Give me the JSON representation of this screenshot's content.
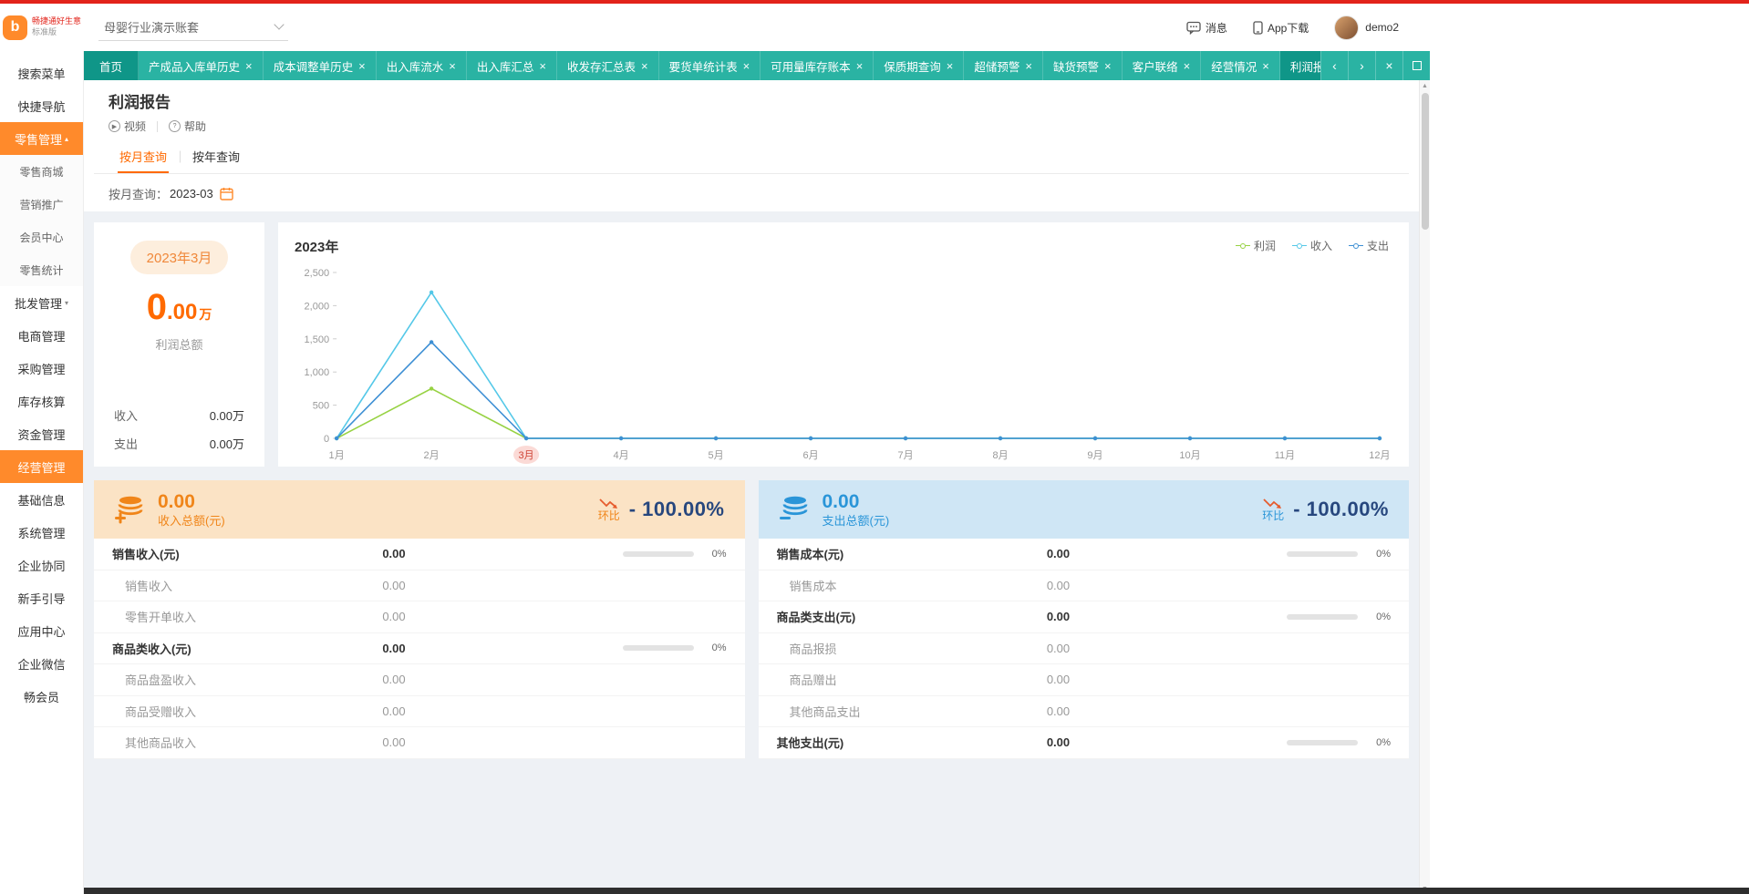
{
  "topbar": {
    "logo_title": "畅捷通好生意",
    "logo_edition": "标准版",
    "account_select": "母婴行业演示账套",
    "messages_label": "消息",
    "app_download_label": "App下载",
    "username": "demo2"
  },
  "tabbar": {
    "home": "首页",
    "tabs": [
      {
        "label": "产成品入库单历史"
      },
      {
        "label": "成本调整单历史"
      },
      {
        "label": "出入库流水"
      },
      {
        "label": "出入库汇总"
      },
      {
        "label": "收发存汇总表"
      },
      {
        "label": "要货单统计表"
      },
      {
        "label": "可用量库存账本"
      },
      {
        "label": "保质期查询"
      },
      {
        "label": "超储预警"
      },
      {
        "label": "缺货预警"
      },
      {
        "label": "客户联络"
      },
      {
        "label": "经营情况"
      },
      {
        "label": "利润报告",
        "active": true
      }
    ]
  },
  "sidebar": {
    "items": [
      {
        "label": "搜索菜单",
        "type": "item"
      },
      {
        "label": "快捷导航",
        "type": "item"
      },
      {
        "label": "零售管理",
        "type": "group",
        "active": true,
        "expanded": true
      },
      {
        "label": "零售商城",
        "type": "sub"
      },
      {
        "label": "营销推广",
        "type": "sub"
      },
      {
        "label": "会员中心",
        "type": "sub"
      },
      {
        "label": "零售统计",
        "type": "sub"
      },
      {
        "label": "批发管理",
        "type": "group"
      },
      {
        "label": "电商管理",
        "type": "item"
      },
      {
        "label": "采购管理",
        "type": "item"
      },
      {
        "label": "库存核算",
        "type": "item"
      },
      {
        "label": "资金管理",
        "type": "item"
      },
      {
        "label": "经营管理",
        "type": "item",
        "active": true
      },
      {
        "label": "基础信息",
        "type": "item"
      },
      {
        "label": "系统管理",
        "type": "item"
      },
      {
        "label": "企业协同",
        "type": "item"
      },
      {
        "label": "新手引导",
        "type": "item"
      },
      {
        "label": "应用中心",
        "type": "item"
      },
      {
        "label": "企业微信",
        "type": "item"
      },
      {
        "label": "畅会员",
        "type": "item"
      }
    ]
  },
  "page": {
    "title": "利润报告",
    "video_label": "视频",
    "help_label": "帮助",
    "tabs": [
      {
        "label": "按月查询",
        "active": true
      },
      {
        "label": "按年查询"
      }
    ],
    "filter_label": "按月查询：",
    "filter_value": "2023-03"
  },
  "summary": {
    "period": "2023年3月",
    "amount_int": "0",
    "amount_dec": ".00",
    "amount_unit": "万",
    "amount_label": "利润总额",
    "rows": [
      {
        "label": "收入",
        "value": "0.00万"
      },
      {
        "label": "支出",
        "value": "0.00万"
      }
    ]
  },
  "chart_data": {
    "type": "line",
    "title": "2023年",
    "categories": [
      "1月",
      "2月",
      "3月",
      "4月",
      "5月",
      "6月",
      "7月",
      "8月",
      "9月",
      "10月",
      "11月",
      "12月"
    ],
    "highlight_category": "3月",
    "y_ticks": [
      "0",
      "500",
      "1,000",
      "1,500",
      "2,000",
      "2,500"
    ],
    "ylim": [
      0,
      2500
    ],
    "grid": false,
    "legend_position": "top-right",
    "series": [
      {
        "name": "利润",
        "color": "#97d243",
        "values": [
          0,
          750,
          0,
          0,
          0,
          0,
          0,
          0,
          0,
          0,
          0,
          0
        ]
      },
      {
        "name": "收入",
        "color": "#54c8e8",
        "values": [
          0,
          2200,
          0,
          0,
          0,
          0,
          0,
          0,
          0,
          0,
          0,
          0
        ]
      },
      {
        "name": "支出",
        "color": "#3d8fd4",
        "values": [
          0,
          1450,
          0,
          0,
          0,
          0,
          0,
          0,
          0,
          0,
          0,
          0
        ]
      }
    ]
  },
  "income_card": {
    "total": "0.00",
    "total_label": "收入总额(元)",
    "ratio_label": "环比",
    "ratio_value": "- 100.00%",
    "rows": [
      {
        "label": "销售收入(元)",
        "value": "0.00",
        "major": true,
        "percent": "0%"
      },
      {
        "label": "销售收入",
        "value": "0.00"
      },
      {
        "label": "零售开单收入",
        "value": "0.00"
      },
      {
        "label": "商品类收入(元)",
        "value": "0.00",
        "major": true,
        "percent": "0%"
      },
      {
        "label": "商品盘盈收入",
        "value": "0.00"
      },
      {
        "label": "商品受赠收入",
        "value": "0.00"
      },
      {
        "label": "其他商品收入",
        "value": "0.00"
      }
    ]
  },
  "expense_card": {
    "total": "0.00",
    "total_label": "支出总额(元)",
    "ratio_label": "环比",
    "ratio_value": "- 100.00%",
    "rows": [
      {
        "label": "销售成本(元)",
        "value": "0.00",
        "major": true,
        "percent": "0%"
      },
      {
        "label": "销售成本",
        "value": "0.00"
      },
      {
        "label": "商品类支出(元)",
        "value": "0.00",
        "major": true,
        "percent": "0%"
      },
      {
        "label": "商品报损",
        "value": "0.00"
      },
      {
        "label": "商品赠出",
        "value": "0.00"
      },
      {
        "label": "其他商品支出",
        "value": "0.00"
      },
      {
        "label": "其他支出(元)",
        "value": "0.00",
        "major": true,
        "percent": "0%"
      }
    ]
  },
  "icons": {
    "close": "×",
    "prev": "‹",
    "next": "›",
    "scroll_up": "▲",
    "scroll_down": "▼",
    "play": "▶",
    "question": "?"
  },
  "colors": {
    "brand_red": "#e2231a",
    "accent_orange": "#ff8a2b",
    "tabbar_teal": "#2ab3a3",
    "tab_active_teal": "#0f9688",
    "income_accent": "#f08519",
    "expense_accent": "#2a95d8",
    "ratio_navy": "#27477e",
    "trend_red": "#e65c2e"
  }
}
